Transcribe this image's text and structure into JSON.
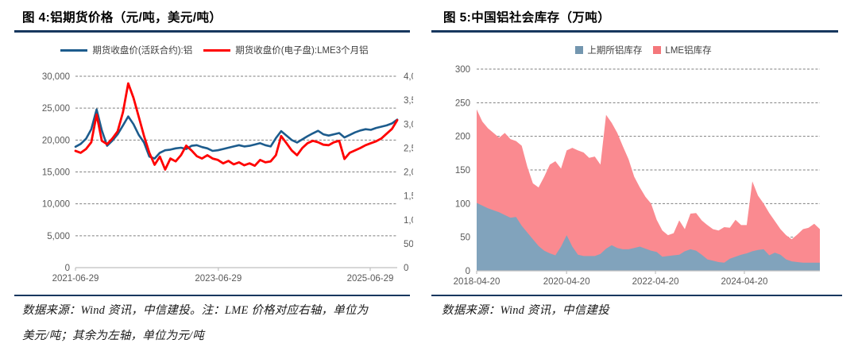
{
  "figure4": {
    "title": "图 4:铝期货价格（元/吨，美元/吨）",
    "source_note_lines": [
      "数据来源：Wind 资讯，中信建投。注：LME 价格对应右轴，单位为",
      "美元/吨；其余为左轴，单位为元/吨"
    ]
  },
  "figure5": {
    "title": "图 5:中国铝社会库存（万吨）",
    "source_note_lines": [
      "数据来源：Wind 资讯，中信建投"
    ]
  },
  "colors": {
    "title_rule": "#17375E",
    "grid": "#7F7F7F",
    "axis_text": "#595959",
    "axis_line": "#BFBFBF",
    "legend_text": "#3F3F3F",
    "note_text": "#1A1A1A"
  },
  "chart_data": [
    {
      "type": "line",
      "title": "图 4:铝期货价格（元/吨，美元/吨）",
      "x_ticks": [
        {
          "label": "2021-06-29",
          "f": 0.0
        },
        {
          "label": "2023-06-29",
          "f": 0.444
        },
        {
          "label": "2025-06-29",
          "f": 0.916
        }
      ],
      "left_axis": {
        "min": 0,
        "max": 30000,
        "tick_values": [
          30000,
          25000,
          20000,
          15000,
          10000,
          5000,
          0
        ],
        "tick_labels": [
          "30,000",
          "25,000",
          "20,000",
          "15,000",
          "10,000",
          "5,000",
          "0"
        ]
      },
      "right_axis": {
        "min": 0,
        "max": 4000,
        "tick_values": [
          4000,
          3500,
          3000,
          2500,
          2000,
          1500,
          1000,
          500,
          0
        ],
        "tick_labels": [
          "4,000",
          "3,500",
          "3,000",
          "2,500",
          "2,000",
          "1,500",
          "1,000",
          "500",
          "0"
        ]
      },
      "grid_values": [
        30000,
        25000,
        20000,
        15000,
        10000,
        5000
      ],
      "legend_position": "top-center",
      "series": [
        {
          "name": "期货收盘价(活跃合约):铝",
          "axis": "left",
          "color": "#1D5C8D",
          "values": [
            18950,
            19400,
            20200,
            21700,
            24800,
            21500,
            19100,
            19900,
            20900,
            22300,
            23700,
            22500,
            20800,
            19600,
            17400,
            17100,
            18000,
            18400,
            18500,
            18700,
            18800,
            18600,
            19100,
            19200,
            18900,
            18700,
            18300,
            18400,
            18600,
            18800,
            19000,
            19200,
            19000,
            19100,
            19300,
            19500,
            19200,
            19000,
            20300,
            21400,
            20700,
            20000,
            19600,
            20100,
            20600,
            21050,
            21450,
            20900,
            20700,
            20900,
            21100,
            20400,
            20800,
            21200,
            21500,
            21700,
            21600,
            21900,
            22100,
            22300,
            22600,
            23200
          ]
        },
        {
          "name": "期货收盘价(电子盘):LME3个月铝",
          "axis": "right",
          "color": "#FF0000",
          "values": [
            2440,
            2400,
            2480,
            2620,
            3200,
            2650,
            2580,
            2700,
            2850,
            3250,
            3850,
            3550,
            3150,
            2750,
            2400,
            2150,
            2320,
            2050,
            2280,
            2220,
            2350,
            2550,
            2450,
            2330,
            2280,
            2350,
            2280,
            2250,
            2180,
            2230,
            2160,
            2200,
            2140,
            2180,
            2130,
            2250,
            2200,
            2220,
            2350,
            2750,
            2600,
            2450,
            2350,
            2500,
            2600,
            2650,
            2620,
            2570,
            2560,
            2620,
            2650,
            2270,
            2400,
            2450,
            2500,
            2560,
            2600,
            2640,
            2700,
            2800,
            2900,
            3080
          ]
        }
      ]
    },
    {
      "type": "area",
      "stacked": true,
      "title": "图 5:中国铝社会库存（万吨）",
      "x_ticks": [
        {
          "label": "2018-04-20",
          "f": 0.0
        },
        {
          "label": "2020-04-20",
          "f": 0.262
        },
        {
          "label": "2022-04-20",
          "f": 0.521
        },
        {
          "label": "2024-04-20",
          "f": 0.78
        }
      ],
      "y_axis": {
        "min": 0,
        "max": 300,
        "tick_values": [
          300,
          250,
          200,
          150,
          100,
          50,
          0
        ],
        "tick_labels": [
          "300",
          "250",
          "200",
          "150",
          "100",
          "50",
          "0"
        ]
      },
      "grid_values": [
        300,
        250,
        200,
        150,
        100,
        50
      ],
      "legend_position": "top-center",
      "series": [
        {
          "name": "上期所铝库存",
          "color": "#81A3BC",
          "legend_color": "#7396AF",
          "values": [
            101,
            97,
            93,
            90,
            87,
            83,
            79,
            80,
            67,
            57,
            47,
            37,
            30,
            26,
            23,
            36,
            53,
            36,
            24,
            22,
            22,
            22,
            25,
            33,
            38,
            34,
            32,
            32,
            34,
            36,
            33,
            30,
            28,
            21,
            22,
            23,
            24,
            29,
            32,
            30,
            24,
            17,
            15,
            13,
            12,
            18,
            21,
            24,
            26,
            29,
            31,
            32,
            23,
            27,
            24,
            17,
            14,
            13,
            12,
            12,
            12,
            12
          ]
        },
        {
          "name": "LME铝库存",
          "color": "#FA8A90",
          "legend_color": "#F4777B",
          "values": [
            139,
            125,
            119,
            115,
            111,
            122,
            117,
            113,
            119,
            98,
            83,
            87,
            110,
            132,
            140,
            116,
            126,
            147,
            155,
            154,
            146,
            148,
            133,
            199,
            182,
            171,
            153,
            134,
            106,
            88,
            77,
            70,
            48,
            39,
            31,
            33,
            51,
            33,
            53,
            56,
            51,
            51,
            47,
            47,
            53,
            46,
            55,
            44,
            42,
            104,
            81,
            68,
            63,
            47,
            38,
            36,
            33,
            41,
            50,
            52,
            58,
            50
          ]
        }
      ]
    }
  ]
}
